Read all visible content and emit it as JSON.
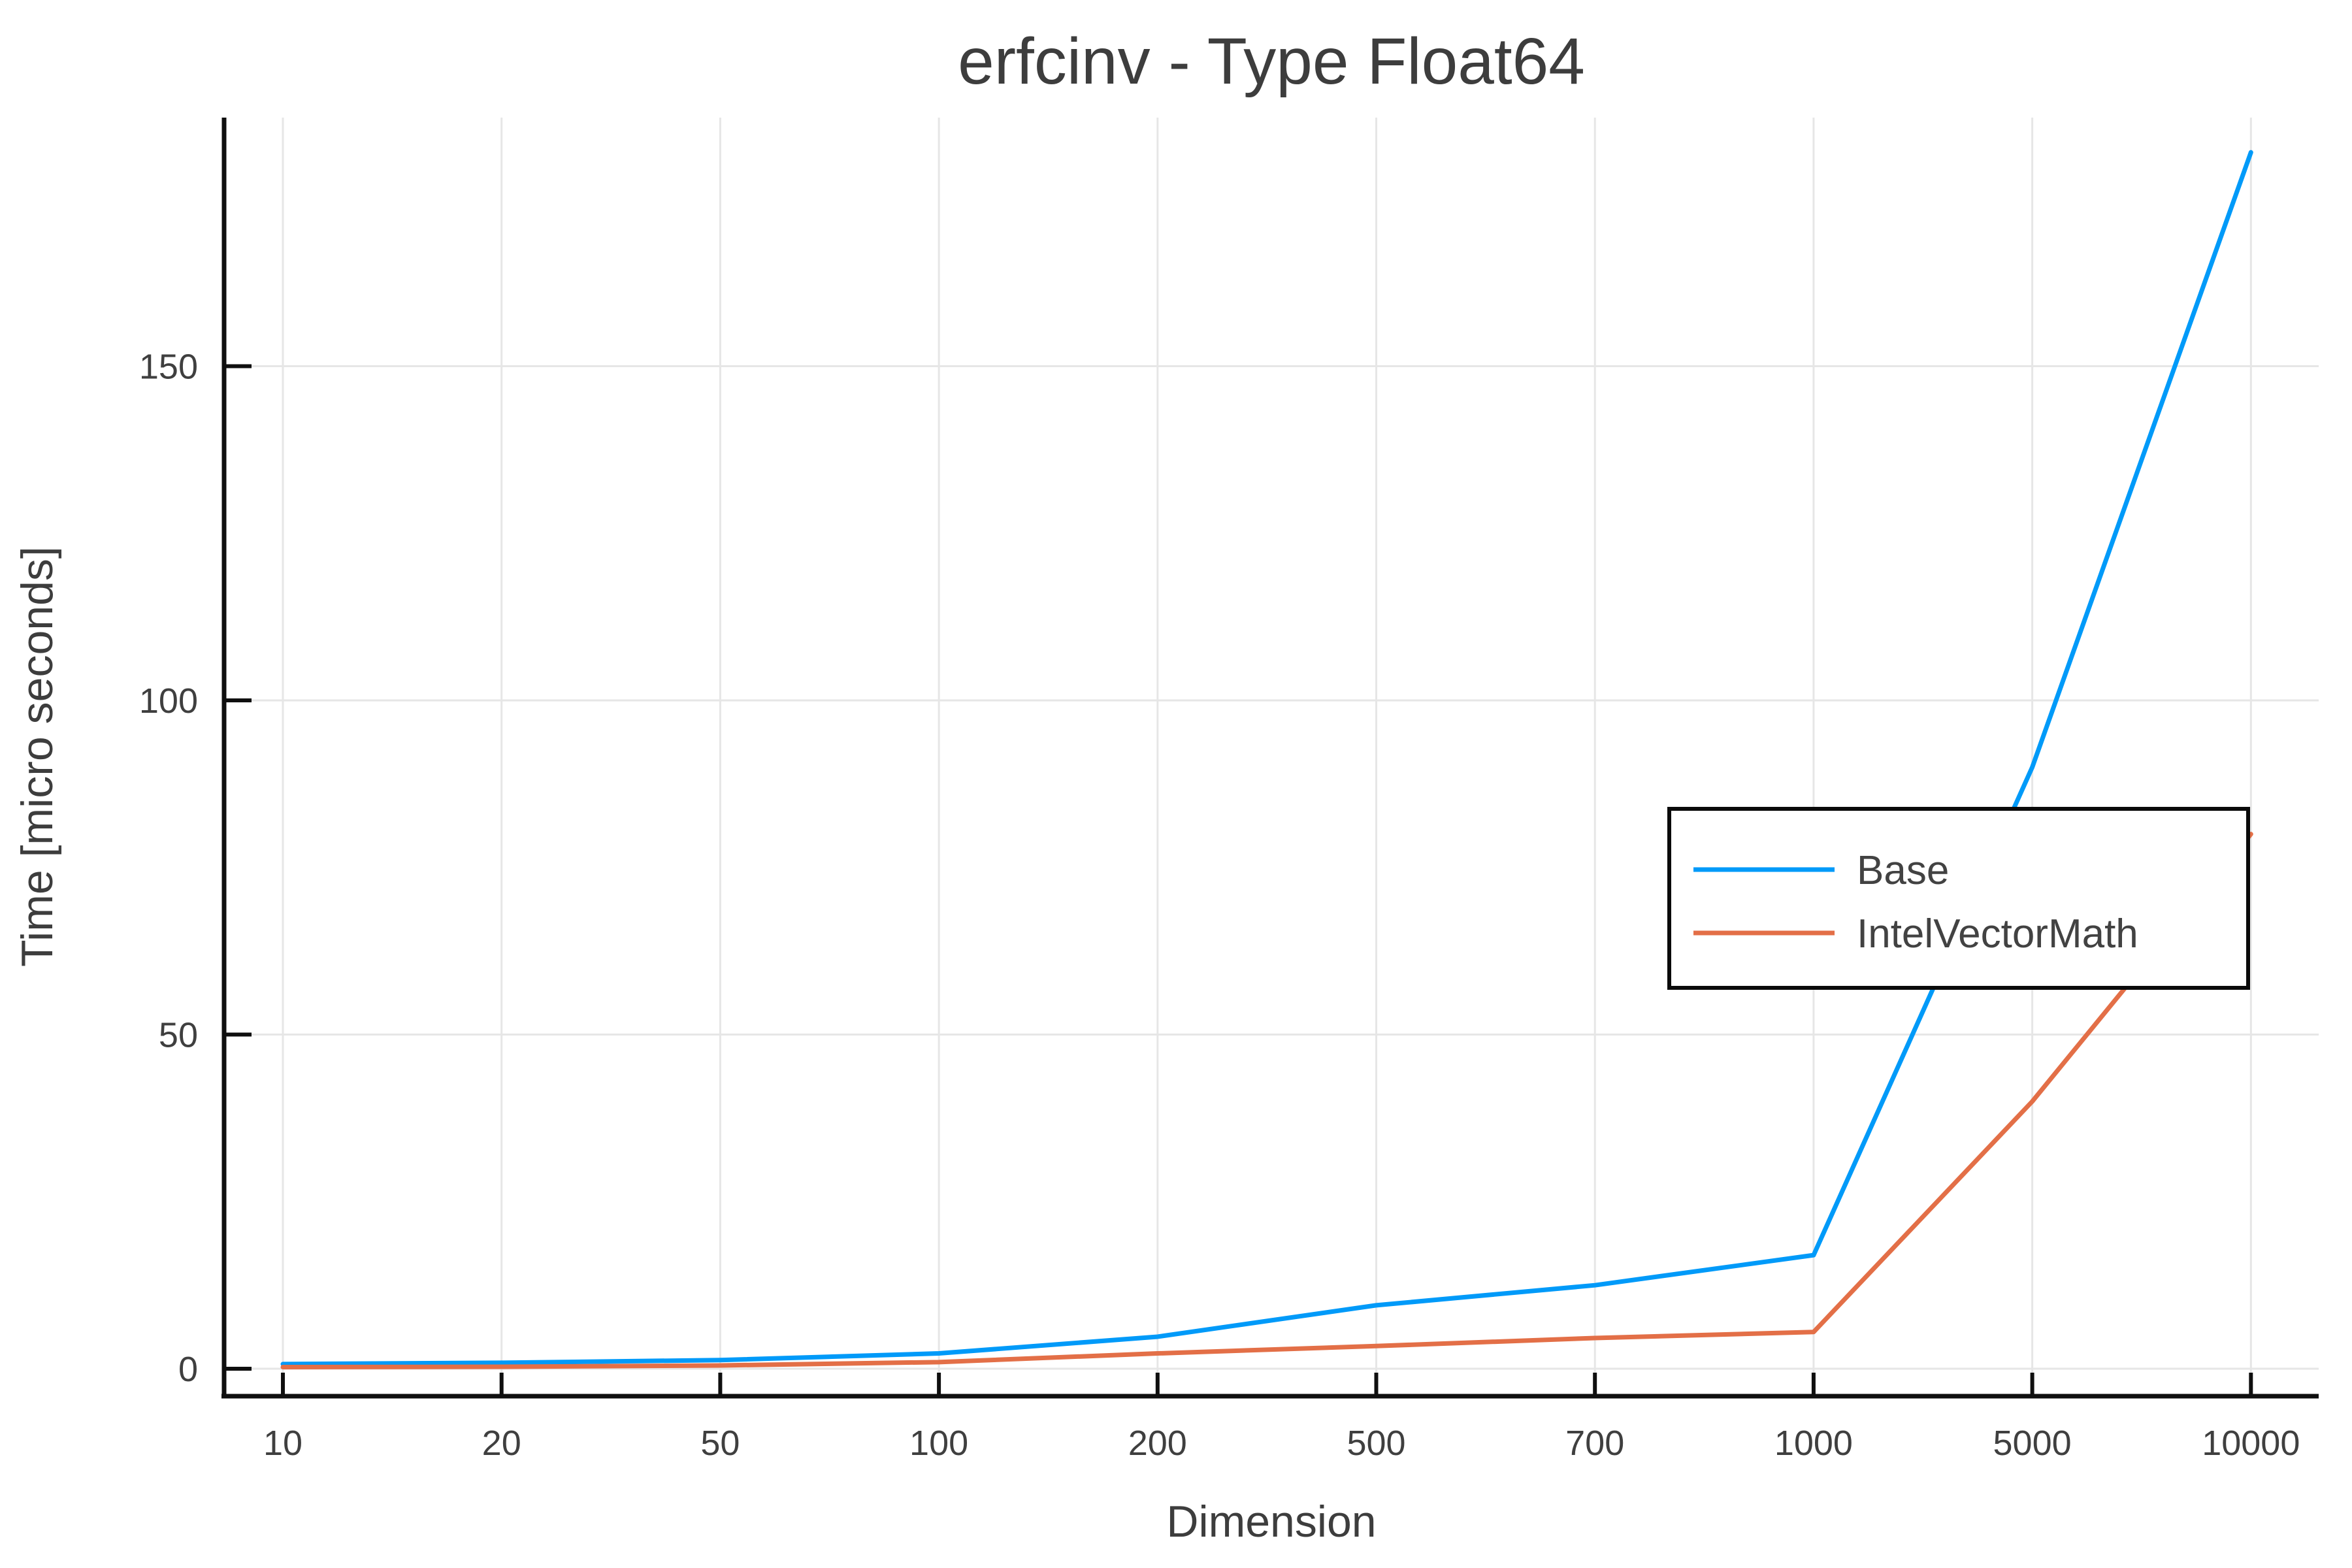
{
  "chart_data": {
    "type": "line",
    "title": "erfcinv - Type Float64",
    "xlabel": "Dimension",
    "ylabel": "Time [micro seconds]",
    "categories": [
      10,
      20,
      50,
      100,
      200,
      500,
      700,
      1000,
      5000,
      10000
    ],
    "x_scale": "categorical-evenly-spaced",
    "yticks": [
      0,
      50,
      100,
      150
    ],
    "ylim": [
      -4.1,
      187.2
    ],
    "grid": true,
    "grid_color": "#e6e6e6",
    "axis_color": "#0f0f0f",
    "background_color": "#ffffff",
    "legend_position": "inside-right-middle",
    "series": [
      {
        "name": "Base",
        "color": "#009AF9",
        "values": [
          0.7,
          0.9,
          1.3,
          2.3,
          4.8,
          9.5,
          12.5,
          17,
          90,
          182
        ]
      },
      {
        "name": "IntelVectorMath",
        "color": "#E36F47",
        "values": [
          0.25,
          0.3,
          0.5,
          1.0,
          2.3,
          3.4,
          4.6,
          5.5,
          40,
          80
        ]
      }
    ]
  }
}
